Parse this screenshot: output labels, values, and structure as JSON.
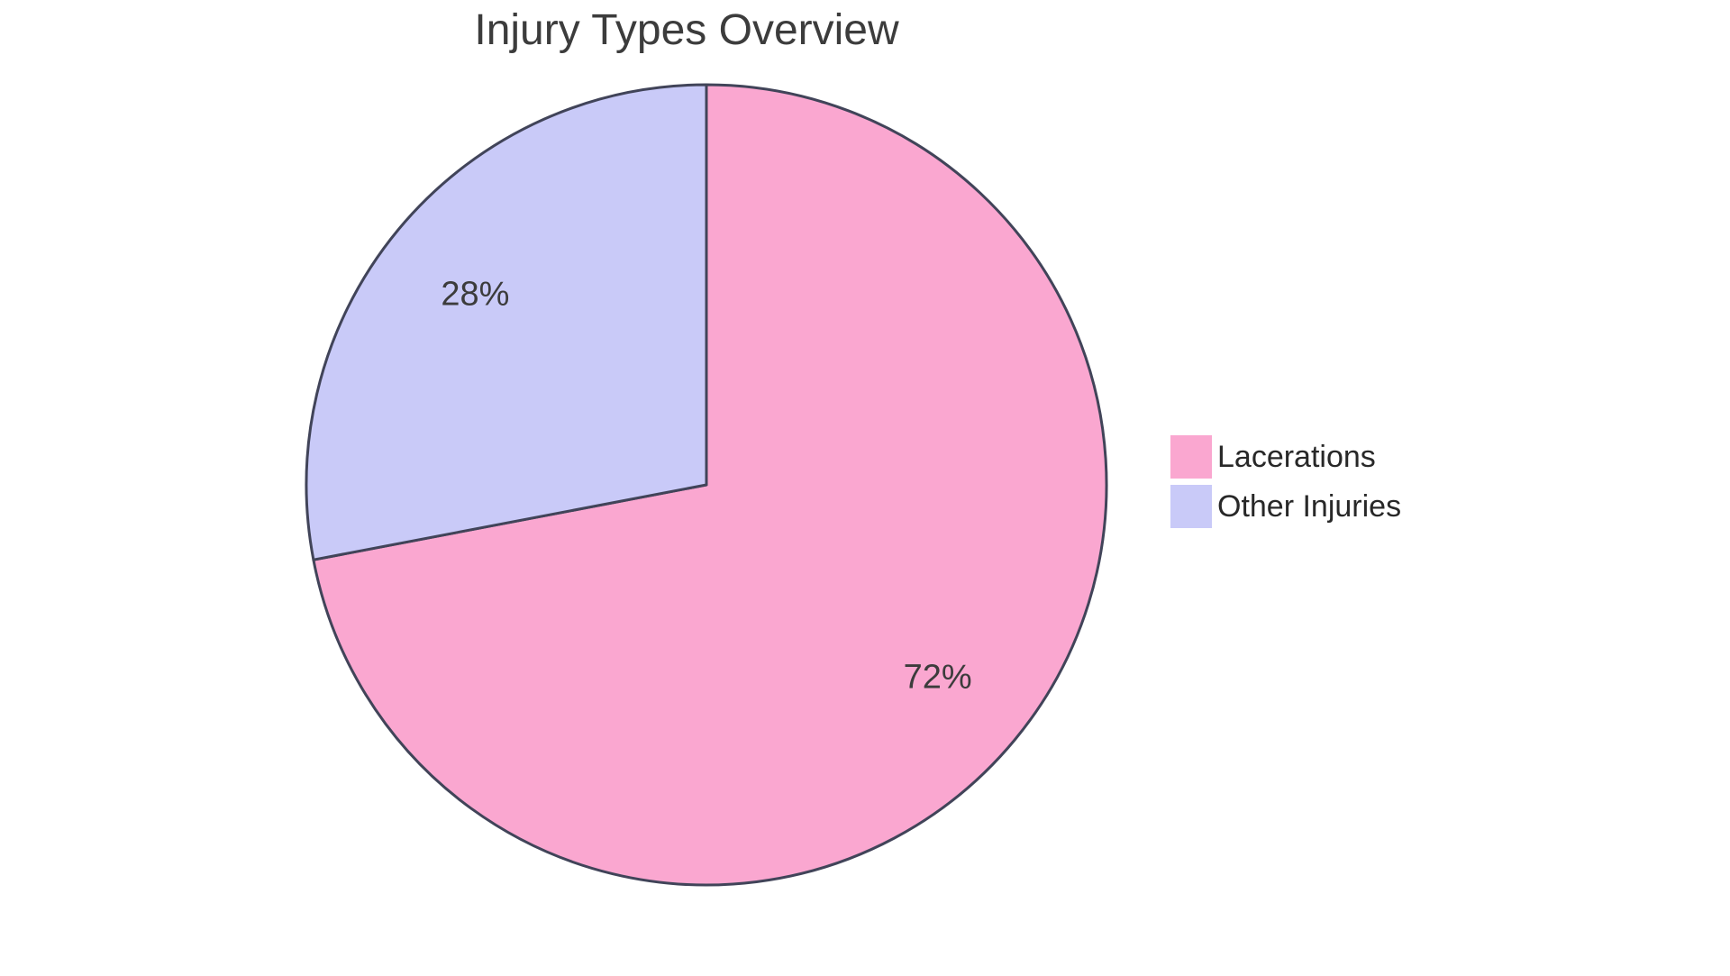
{
  "chart_data": {
    "type": "pie",
    "title": "Injury Types Overview",
    "slices": [
      {
        "label": "Lacerations",
        "value": 72,
        "pct_label": "72%",
        "color": "#FAA7D0"
      },
      {
        "label": "Other Injuries",
        "value": 28,
        "pct_label": "28%",
        "color": "#C9CAF8"
      }
    ],
    "start_angle_deg": 0,
    "direction": "clockwise",
    "legend_position": "right",
    "grid": false,
    "background": "#FFFFFF",
    "border_color": "#414459",
    "label_color": "#3C3C3C",
    "title_color": "#3C3C3C",
    "legend_text_color": "#282828"
  }
}
